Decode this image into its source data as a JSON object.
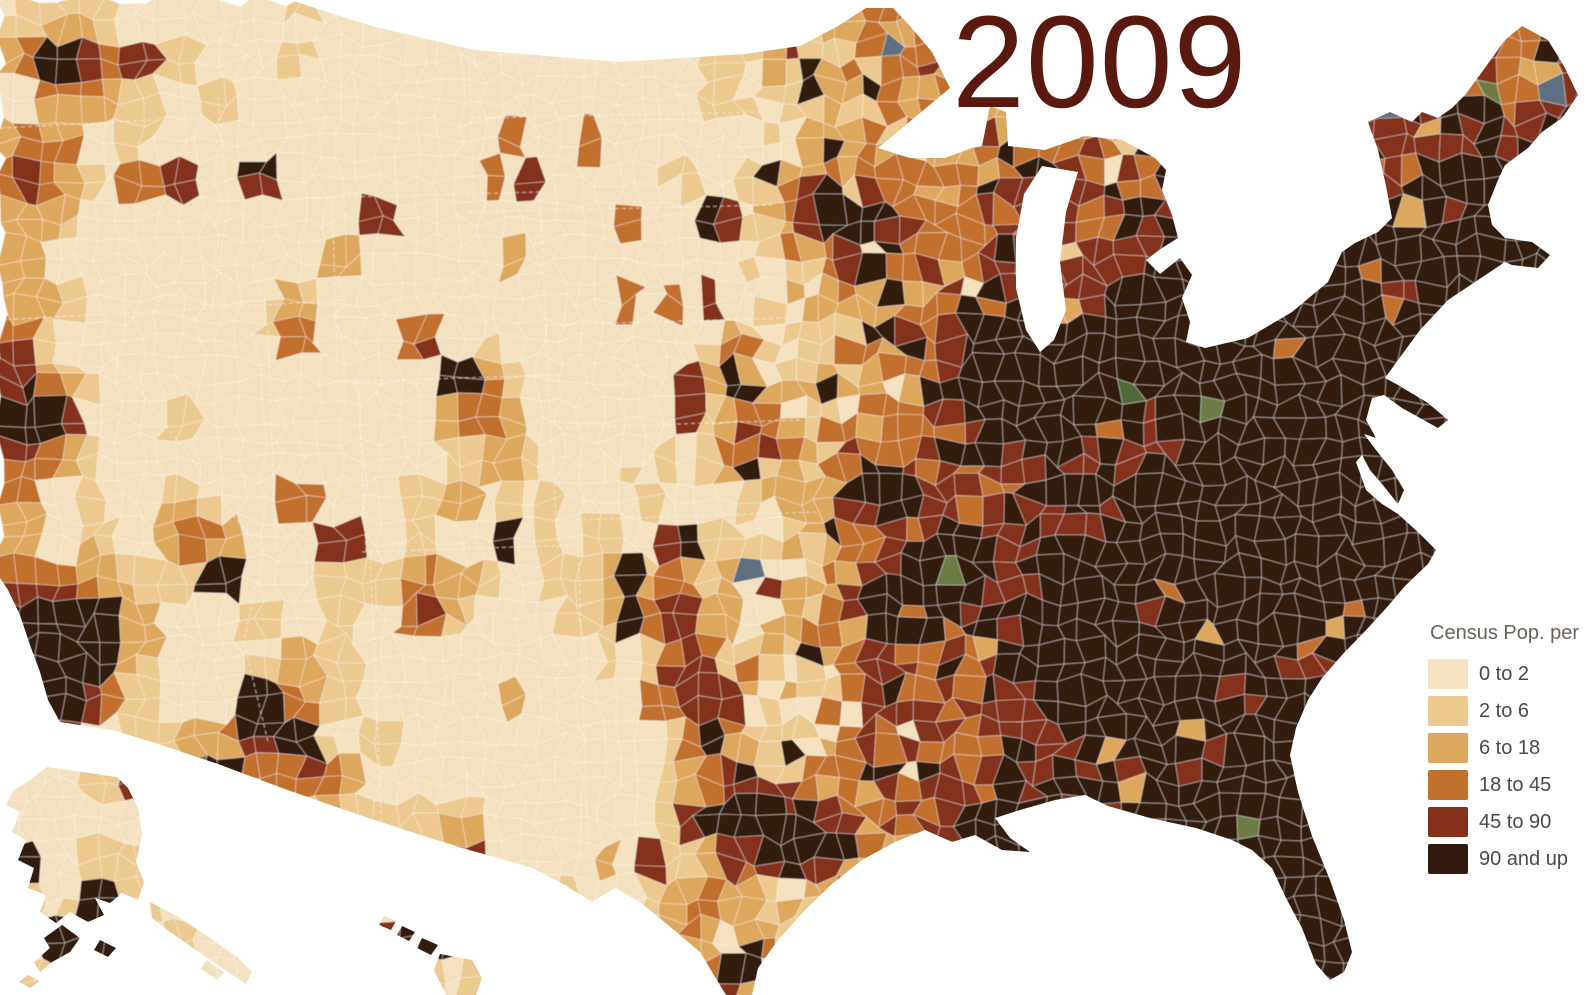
{
  "title": {
    "year": "2009",
    "color": "#5a190e"
  },
  "legend": {
    "title": "Census Pop. per",
    "title_color": "#6a635c",
    "label_color": "#4e4944",
    "items": [
      {
        "label": "0 to 2",
        "color": "#f3e1bf"
      },
      {
        "label": "2 to 6",
        "color": "#ebc98f"
      },
      {
        "label": "6 to 18",
        "color": "#dda75d"
      },
      {
        "label": "18 to 45",
        "color": "#c2702e"
      },
      {
        "label": "45 to 90",
        "color": "#84301a"
      },
      {
        "label": "90 and up",
        "color": "#331a10"
      }
    ]
  },
  "map": {
    "background": "#ffffff",
    "county_border_color": "rgba(255,255,255,0.45)",
    "state_border_color": "rgba(255,255,255,0.55)",
    "rare_county_colors": [
      "#7d7a74",
      "#8d8d90",
      "#5e7180",
      "#4f6b38",
      "#6d7c45"
    ],
    "regions": [
      "contiguous-us",
      "alaska",
      "hawaii"
    ]
  },
  "chart_data": {
    "type": "choropleth-map",
    "title": "2009",
    "legend_title": "Census Pop. per",
    "classes": [
      "0 to 2",
      "2 to 6",
      "6 to 18",
      "18 to 45",
      "45 to 90",
      "90 and up"
    ],
    "class_colors": [
      "#f3e1bf",
      "#ebc98f",
      "#dda75d",
      "#c2702e",
      "#84301a",
      "#331a10"
    ],
    "geography": "United States counties (incl. Alaska and Hawaii insets)",
    "pattern": "Lowest density across the Great Plains and Mountain West; highest density in the eastern half, Pacific coast metros, Texas metro corridor, and Florida"
  }
}
